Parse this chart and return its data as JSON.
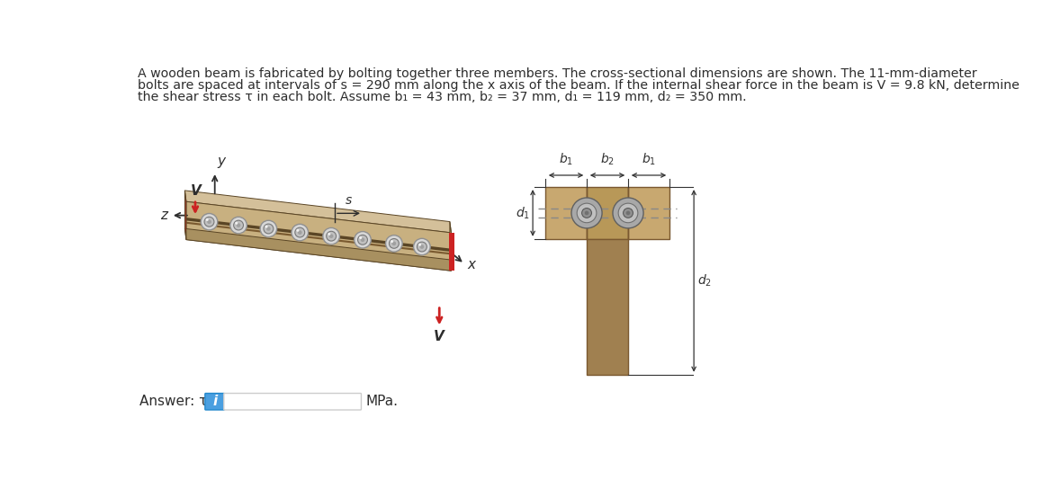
{
  "bg_color": "#ffffff",
  "text_color": "#2d2d2d",
  "beam_top_color": "#d4c09a",
  "beam_front_color": "#c8b080",
  "beam_side_color": "#b8a070",
  "beam_bottom_color": "#a89060",
  "beam_dark_stripe": "#5a4525",
  "beam_end_color": "#c0a060",
  "red_color": "#cc2222",
  "bolt_outer": "#c0c0c0",
  "bolt_inner": "#a8a8a8",
  "bolt_dark": "#808080",
  "cross_flange_light": "#c8a870",
  "cross_flange_dark": "#a08050",
  "cross_web_color": "#9a7855",
  "cross_seam_color": "#7a5a35",
  "bolt_cs_outer": "#b0b0b0",
  "bolt_cs_inner": "#909090",
  "bolt_cs_hex": "#787878",
  "dim_color": "#333333",
  "answer_blue": "#4a9fe0",
  "title_lines": [
    "A wooden beam is fabricated by bolting together three members. The cross-sectional dimensions are shown. The 11-mm-diameter",
    "bolts are spaced at intervals of s = 290 mm along the x axis of the beam. If the internal shear force in the beam is V = 9.8 kN, determine",
    "the shear stress τ in each bolt. Assume b₁ = 43 mm, b₂ = 37 mm, d₁ = 119 mm, d₂ = 350 mm."
  ]
}
